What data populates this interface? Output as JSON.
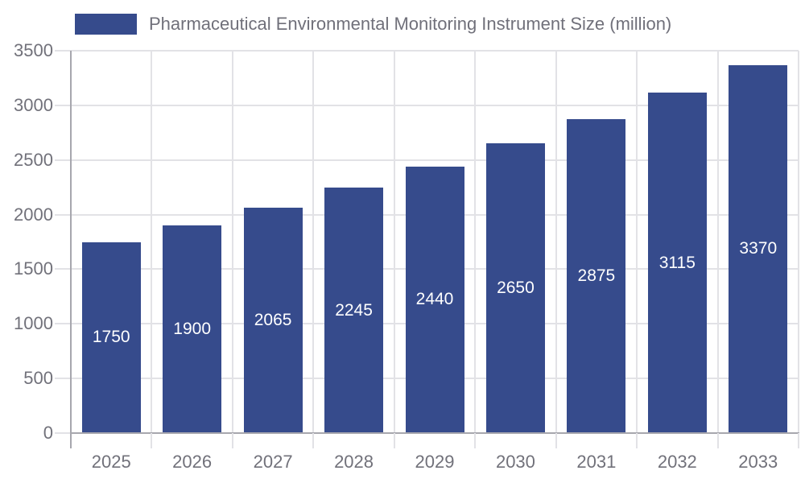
{
  "legend": {
    "label": "Pharmaceutical Environmental Monitoring Instrument Size (million)",
    "swatch_color": "#364B8C"
  },
  "chart_data": {
    "type": "bar",
    "title": "Pharmaceutical Environmental Monitoring Instrument Size (million)",
    "categories": [
      "2025",
      "2026",
      "2027",
      "2028",
      "2029",
      "2030",
      "2031",
      "2032",
      "2033"
    ],
    "values": [
      1750,
      1900,
      2065,
      2245,
      2440,
      2650,
      2875,
      3115,
      3370
    ],
    "value_labels": [
      "1750",
      "1900",
      "2065",
      "2245",
      "2440",
      "2650",
      "2875",
      "3115",
      "3370"
    ],
    "xlabel": "",
    "ylabel": "",
    "ylim": [
      0,
      3500
    ],
    "yticks": [
      0,
      500,
      1000,
      1500,
      2000,
      2500,
      3000,
      3500
    ],
    "grid": true,
    "legend_position": "top-left",
    "bar_color": "#364B8C",
    "value_label_color": "#FFFFFF"
  },
  "colors": {
    "bar": "#364B8C",
    "gridline": "#E2E2E6",
    "axis_line": "#A7A7AE",
    "axis_text": "#71717A",
    "background": "#FFFFFF"
  }
}
